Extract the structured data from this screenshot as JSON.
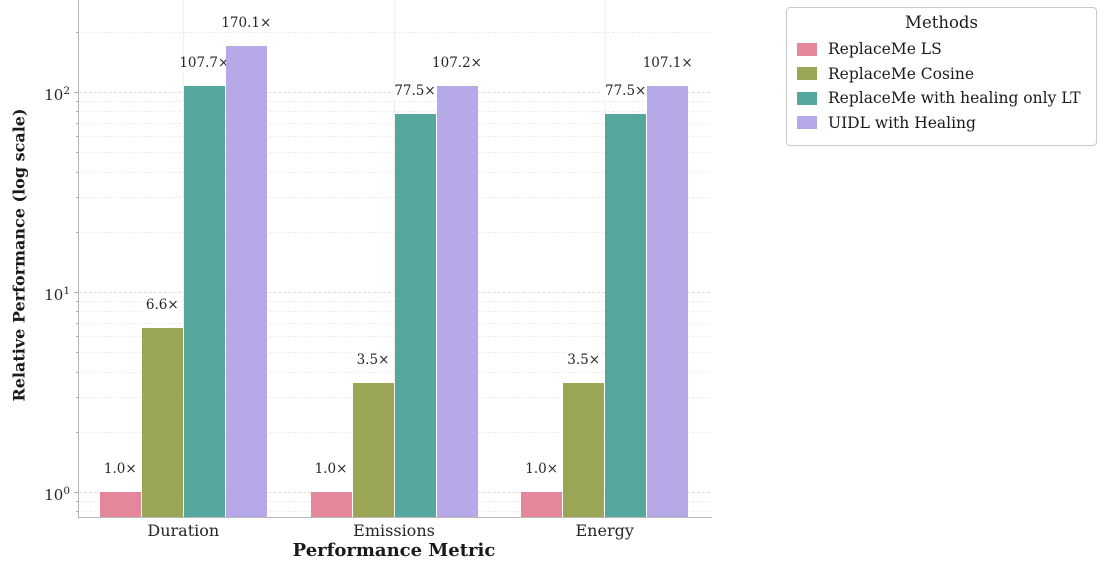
{
  "chart_data": {
    "type": "bar",
    "y_scale": "log",
    "title": "",
    "xlabel": "Performance Metric",
    "ylabel": "Relative Performance (log scale)",
    "categories": [
      "Duration",
      "Emissions",
      "Energy"
    ],
    "series": [
      {
        "name": "ReplaceMe LS",
        "color": "#E4879B",
        "values": [
          1.0,
          1.0,
          1.0
        ],
        "labels": [
          "1.0×",
          "1.0×",
          "1.0×"
        ]
      },
      {
        "name": "ReplaceMe Cosine",
        "color": "#9AA555",
        "values": [
          6.6,
          3.5,
          3.5
        ],
        "labels": [
          "6.6×",
          "3.5×",
          "3.5×"
        ]
      },
      {
        "name": "ReplaceMe with healing only LT",
        "color": "#55A79E",
        "values": [
          107.7,
          77.5,
          77.5
        ],
        "labels": [
          "107.7×",
          "77.5×",
          "77.5×"
        ]
      },
      {
        "name": "UIDL with Healing",
        "color": "#B7A8E8",
        "values": [
          170.1,
          107.2,
          107.1
        ],
        "labels": [
          "170.1×",
          "107.2×",
          "107.1×"
        ]
      }
    ],
    "legend": {
      "title": "Methods",
      "position": "outside-right-top"
    },
    "y_ticks": [
      {
        "label": "10^0",
        "value": 1
      },
      {
        "label": "10^1",
        "value": 10
      },
      {
        "label": "10^2",
        "value": 100
      }
    ],
    "ylim": [
      0.75,
      290
    ],
    "grid": {
      "horizontal": "major+minor log, dashed light gray",
      "vertical": "dotted at category centers"
    }
  }
}
